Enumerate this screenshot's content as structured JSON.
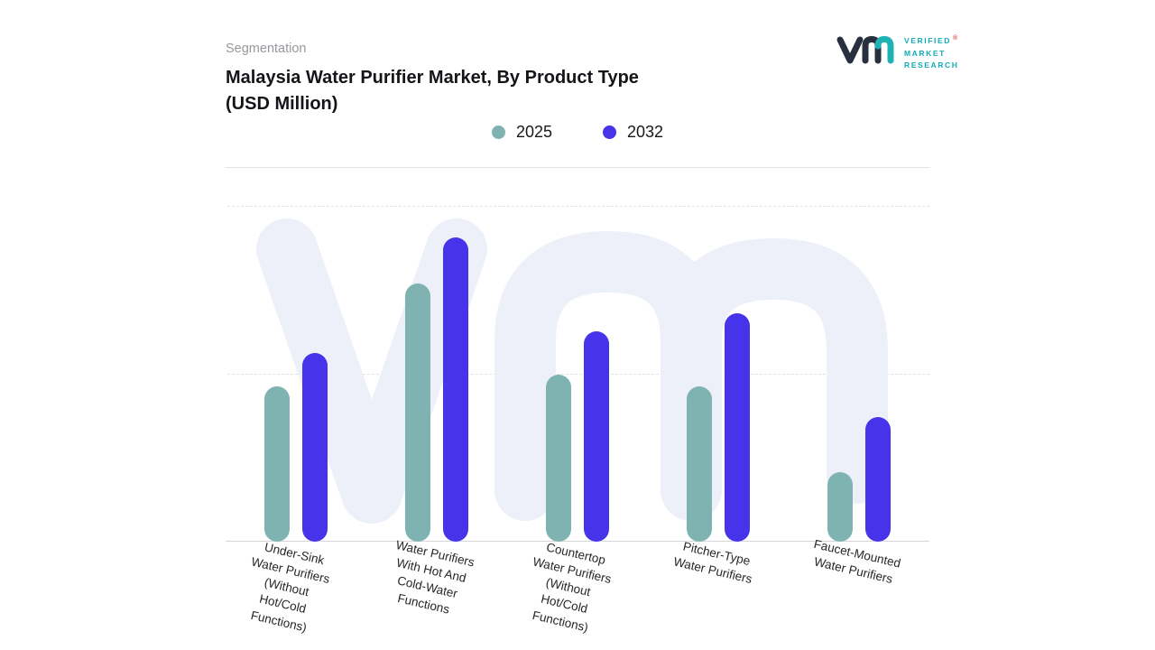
{
  "header": {
    "eyebrow": "Segmentation",
    "title": "Malaysia Water Purifier Market, By Product Type\n(USD Million)"
  },
  "logo": {
    "brand_lines": [
      "VERIFIED",
      "MARKET",
      "RESEARCH"
    ],
    "registered_mark": "®"
  },
  "chart_data": {
    "type": "bar",
    "title": "Malaysia Water Purifier Market, By Product Type (USD Million)",
    "unit": "USD Million",
    "categories": [
      "Under-Sink\nWater Purifiers\n(Without\nHot/Cold\nFunctions)",
      "Water Purifiers\nWith Hot And\nCold-Water\nFunctions",
      "Countertop\nWater Purifiers\n(Without\nHot/Cold\nFunctions)",
      "Pitcher-Type\nWater Purifiers",
      "Faucet-Mounted\nWater Purifiers"
    ],
    "series": [
      {
        "name": "2025",
        "color": "#7eb3b1",
        "values": [
          51,
          85,
          55,
          51,
          23
        ]
      },
      {
        "name": "2032",
        "color": "#4733e9",
        "values": [
          62,
          100,
          69,
          75,
          41
        ]
      }
    ],
    "ylim": [
      0,
      100
    ],
    "y_axis_labels_visible": false,
    "gridlines": "dashed horizontal",
    "legend_position": "top",
    "watermark": "vm monogram"
  }
}
